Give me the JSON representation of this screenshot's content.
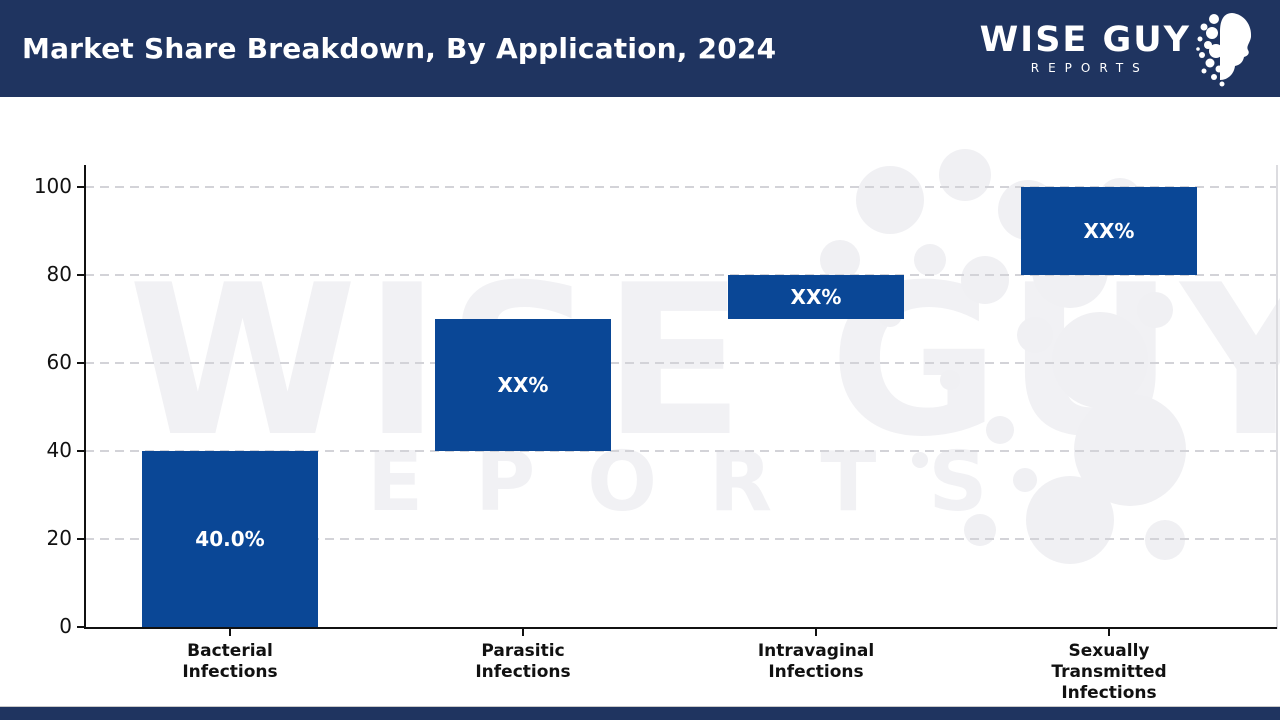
{
  "header": {
    "title": "Market Share Breakdown, By Application, 2024",
    "logo": {
      "line1": "WISE GUY",
      "line2": "REPORTS"
    }
  },
  "watermark": {
    "line1": "WISE GUY",
    "line2": "REPORTS"
  },
  "chart_data": {
    "type": "bar",
    "subtype": "waterfall",
    "title": "Market Share Breakdown, By Application, 2024",
    "categories": [
      [
        "Bacterial",
        "Infections"
      ],
      [
        "Parasitic",
        "Infections"
      ],
      [
        "Intravaginal",
        "Infections"
      ],
      [
        "Sexually",
        "Transmitted",
        "Infections"
      ]
    ],
    "series": [
      {
        "name": "Market Share",
        "segments": [
          {
            "start": 0,
            "end": 40,
            "label": "40.0%"
          },
          {
            "start": 40,
            "end": 70,
            "label": "XX%"
          },
          {
            "start": 70,
            "end": 80,
            "label": "XX%"
          },
          {
            "start": 80,
            "end": 100,
            "label": "XX%"
          }
        ]
      }
    ],
    "ylim": [
      0,
      100
    ],
    "yticks": [
      0,
      20,
      40,
      60,
      80,
      100
    ],
    "xlabel": "",
    "ylabel": "",
    "grid": "horizontal-dashed",
    "legend": "none",
    "colors": {
      "bar": "#0a4796",
      "bar_label": "#ffffff",
      "axis": "#111111",
      "grid": "#d3d3d8",
      "header_bg": "#1f3460",
      "footer_bg": "#1f3460",
      "watermark": "#f1f1f4",
      "background": "#ffffff"
    }
  }
}
